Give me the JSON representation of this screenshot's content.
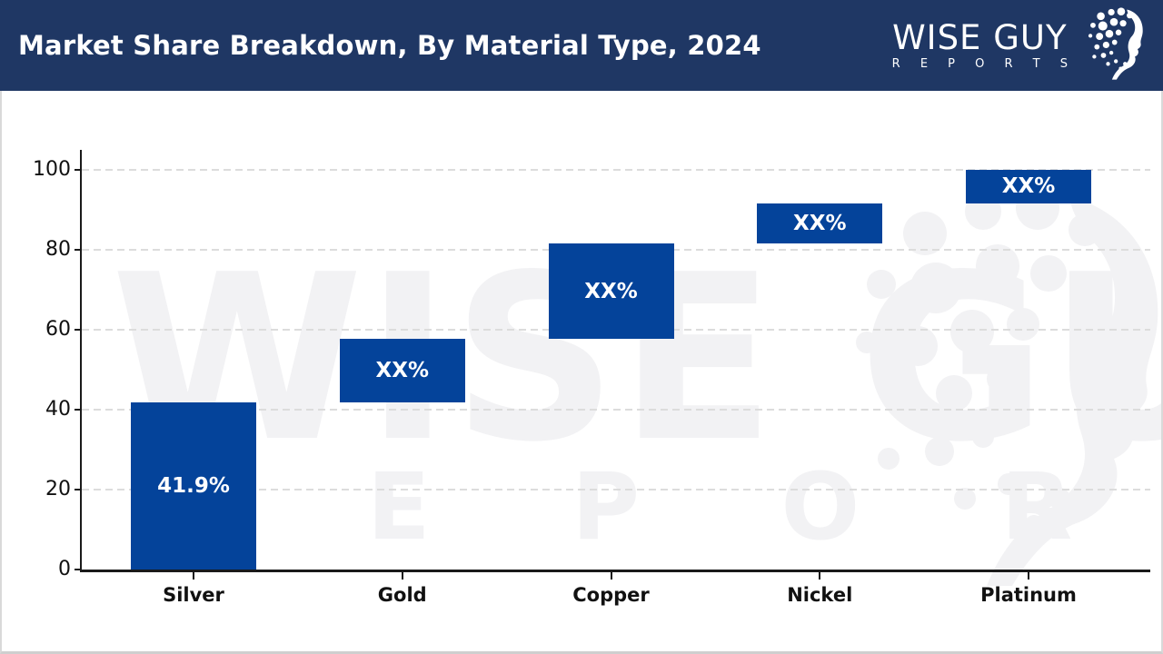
{
  "header": {
    "title": "Market Share Breakdown, By Material Type, 2024",
    "logo": {
      "name": "WISE GUY",
      "sub": "R E P O R T S"
    }
  },
  "watermark": {
    "line1": "WISE GUY",
    "line2": "R E P O R T S"
  },
  "chart_data": {
    "type": "bar",
    "variant": "waterfall",
    "title": "Market Share Breakdown, By Material Type, 2024",
    "categories": [
      "Silver",
      "Gold",
      "Copper",
      "Nickel",
      "Platinum"
    ],
    "segments": [
      {
        "category": "Silver",
        "start": 0,
        "end": 41.9,
        "label": "41.9%"
      },
      {
        "category": "Gold",
        "start": 41.9,
        "end": 57.7,
        "label": "XX%"
      },
      {
        "category": "Copper",
        "start": 57.7,
        "end": 81.5,
        "label": "XX%"
      },
      {
        "category": "Nickel",
        "start": 81.5,
        "end": 91.7,
        "label": "XX%"
      },
      {
        "category": "Platinum",
        "start": 91.7,
        "end": 100,
        "label": "XX%"
      }
    ],
    "xlabel": "",
    "ylabel": "",
    "ylim": [
      0,
      105
    ],
    "yticks": [
      0,
      20,
      40,
      60,
      80,
      100
    ],
    "grid": {
      "horizontal": true,
      "style": "dashed"
    },
    "legend": "none",
    "bar_color": "#04439a",
    "bar_label_color": "#ffffff"
  },
  "colors": {
    "header_bg": "#1f3764",
    "title_text": "#ffffff",
    "bar": "#04439a",
    "axis": "#1a1a1a",
    "grid": "#dcdcdc",
    "watermark": "#f2f2f4",
    "page_bg": "#ffffff"
  }
}
